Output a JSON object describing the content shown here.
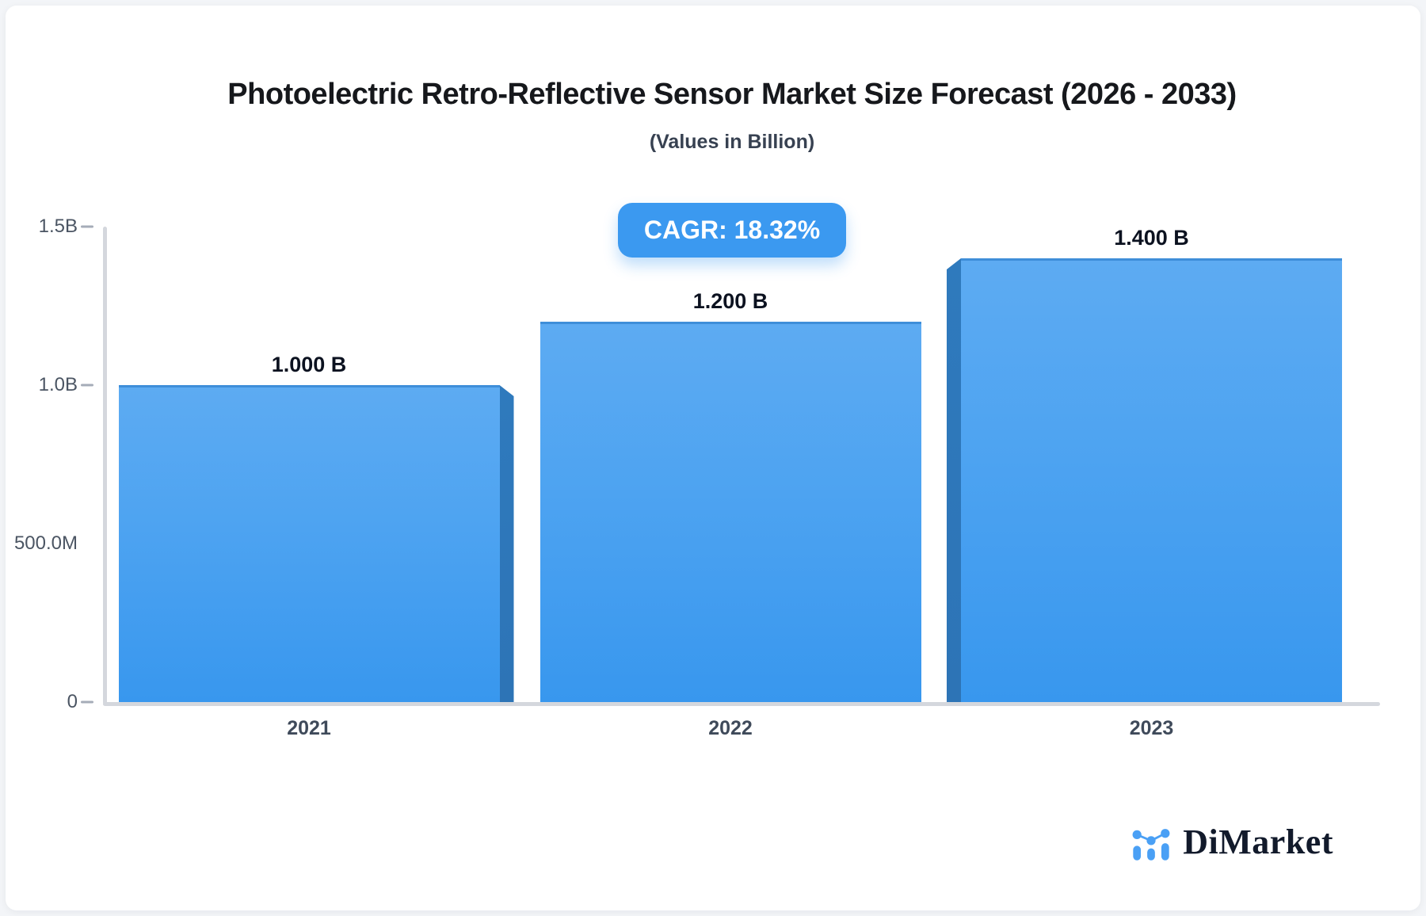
{
  "chart_data": {
    "type": "bar",
    "title": "Photoelectric Retro-Reflective Sensor Market Size Forecast (2026 - 2033)",
    "subtitle": "(Values in Billion)",
    "cagr_label": "CAGR: 18.32%",
    "categories": [
      "2021",
      "2022",
      "2023"
    ],
    "values": [
      1.0,
      1.2,
      1.4
    ],
    "value_labels": [
      "1.000 B",
      "1.200 B",
      "1.400 B"
    ],
    "ylim": [
      0,
      1.5
    ],
    "yticks": [
      {
        "label": "1.5B",
        "value": 1.5,
        "dash": true
      },
      {
        "label": "1.0B",
        "value": 1.0,
        "dash": true
      },
      {
        "label": "500.0M",
        "value": 0.5,
        "dash": false
      },
      {
        "label": "0",
        "value": 0.0,
        "dash": true
      }
    ],
    "legend": null,
    "grid": false,
    "colors": {
      "bar_top": "#5dabf2",
      "bar_bottom": "#3897ee",
      "bar_side": "#2d74b6",
      "badge": "#3b99f0",
      "axis": "#d4d7dd"
    }
  },
  "branding": {
    "name": "DiMarket",
    "logo_icon": "mini-bar-line-chart-icon",
    "icon_color": "#4aa0f5"
  }
}
